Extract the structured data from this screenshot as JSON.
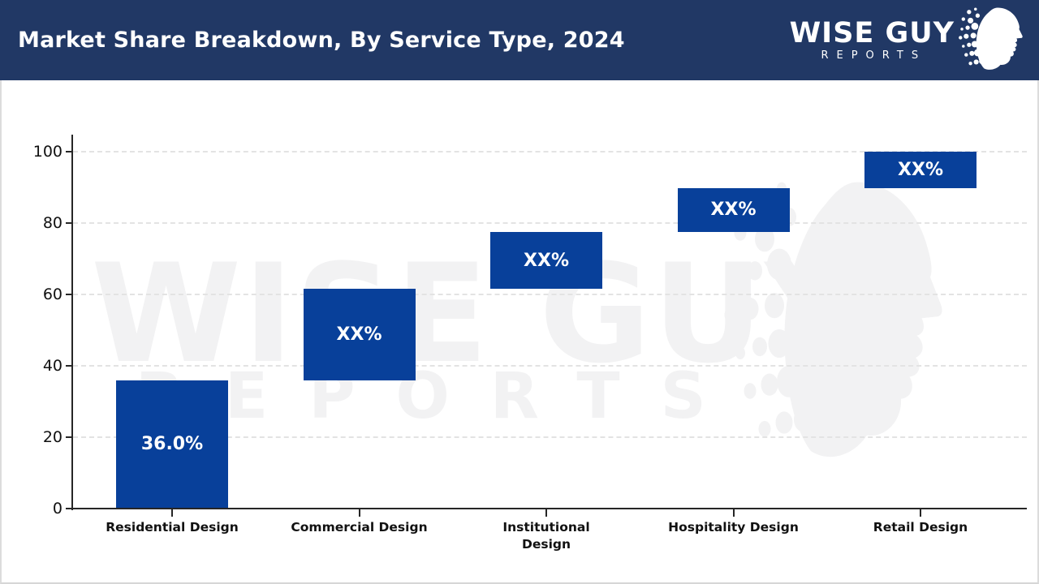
{
  "header": {
    "title": "Market Share Breakdown, By Service Type, 2024",
    "logo": {
      "name": "WISE GUY",
      "tagline": "REPORTS"
    }
  },
  "watermark": {
    "name": "WISE GUY",
    "tagline": "REPORTS"
  },
  "chart_data": {
    "type": "bar",
    "variant": "waterfall",
    "title": "Market Share Breakdown, By Service Type, 2024",
    "categories": [
      "Residential Design",
      "Commercial Design",
      "Institutional\nDesign",
      "Hospitality Design",
      "Retail Design"
    ],
    "bar_labels": [
      "36.0%",
      "XX%",
      "XX%",
      "XX%",
      "XX%"
    ],
    "segments": [
      [
        0,
        36.0
      ],
      [
        36.0,
        61.5
      ],
      [
        61.5,
        77.5
      ],
      [
        77.5,
        89.8
      ],
      [
        89.8,
        100
      ]
    ],
    "ylim": [
      0,
      100
    ],
    "yticks": [
      0,
      20,
      40,
      60,
      80,
      100
    ],
    "grid": "horizontal-dashed",
    "legend": "none",
    "xlabel": "",
    "ylabel": "",
    "bar_color": "#08409a",
    "bar_label_color": "#ffffff"
  },
  "colors": {
    "header_bg": "#213865",
    "accent_blue": "#08409a",
    "grid": "#e3e3e3",
    "axis": "#262626",
    "watermark": "#f2f2f3"
  }
}
